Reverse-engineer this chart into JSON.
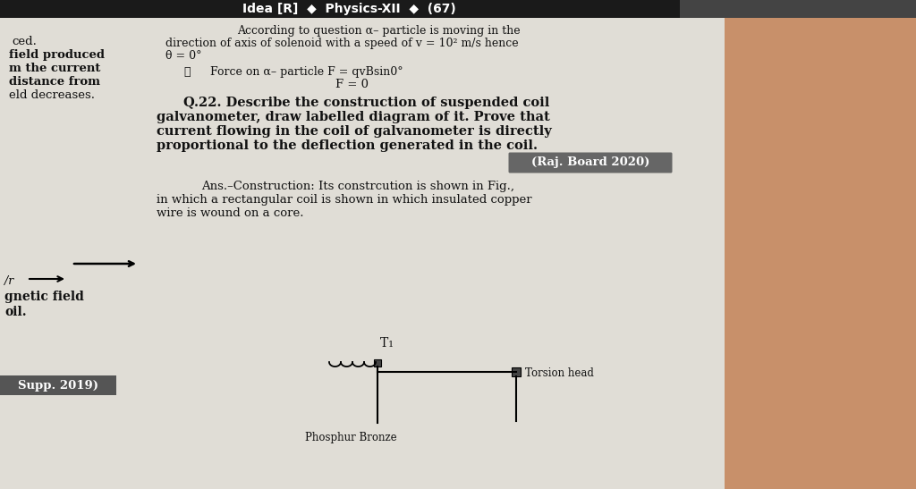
{
  "bg_color": "#d8d0c0",
  "page_bg": "#e8e4dc",
  "content_bg": "#dcdad4",
  "header_bg": "#1a1a1a",
  "header_text": "Idea [R]  ◆  Physics-XII  ◆  (67)",
  "header_color": "#ffffff",
  "right_bg": "#3a3a3a",
  "skin_color": "#c8906a",
  "main_text_color": "#111111",
  "left_bold_texts": [
    [
      "ced.",
      40,
      8,
      false
    ],
    [
      "field produced",
      55,
      5,
      true
    ],
    [
      "m the current",
      70,
      5,
      true
    ],
    [
      "distance from",
      85,
      5,
      true
    ],
    [
      "eld decreases.",
      100,
      5,
      false
    ]
  ],
  "line1": "According to question α– particle is moving in the",
  "line2": "direction of axis of solenoid with a speed of v = 10² m/s hence",
  "line3": "θ = 0°",
  "line4_therefore": "∴",
  "line4_rest": "Force on α– particle F = qvBsin0°",
  "line5": "F = 0",
  "q22a": "Q.22. Describe the construction of suspended coil",
  "q22b": "galvanometer, draw labelled diagram of it. Prove that",
  "q22c": "current flowing in the coil of galvanometer is directly",
  "q22d": "proportional to the deflection generated in the coil.",
  "board_tag": "(Raj. Board 2020)",
  "board_tag_bg": "#666666",
  "board_tag_color": "#ffffff",
  "ans_line1": "Ans.–Construction: Its constrcution is shown in Fig.,",
  "ans_line2": "in which a rectangular coil is shown in which insulated copper",
  "ans_line3": "wire is wound on a core.",
  "diagram_label_T": "T",
  "diagram_label_T_sub": "1",
  "diagram_label_torsion": "Torsion head",
  "diagram_label_phosphur": "Phosphur Bronze",
  "arrow_text": "/r",
  "gnetic_field": "gnetic field",
  "oil_text": "oil.",
  "supp_text": "Supp. 2019)",
  "supp_bg": "#555555"
}
